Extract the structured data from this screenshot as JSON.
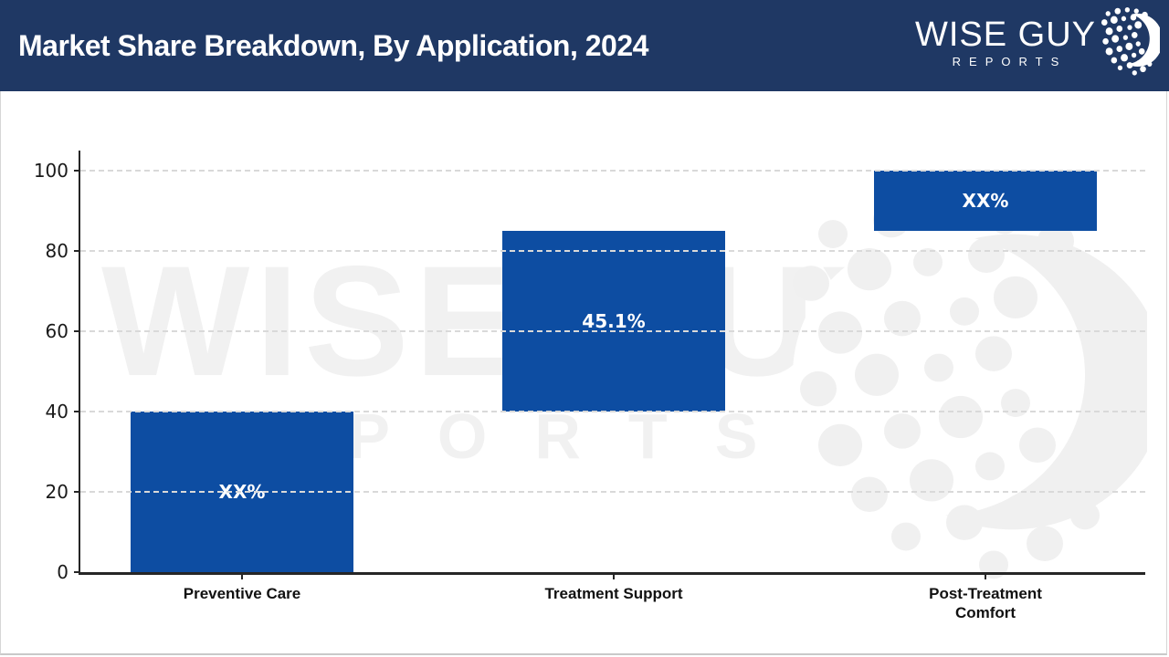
{
  "header": {
    "title": "Market Share Breakdown, By Application, 2024",
    "logo": {
      "line1": "WISE GUY",
      "line2": "REPORTS"
    }
  },
  "watermark": {
    "line1": "WISE GUY",
    "line2": "REPORTS"
  },
  "chart_data": {
    "type": "bar",
    "subtype": "waterfall",
    "title": "Market Share Breakdown, By Application, 2024",
    "categories": [
      "Preventive Care",
      "Treatment Support",
      "Post-Treatment\nComfort"
    ],
    "bars": [
      {
        "label": "XX%",
        "start": 0,
        "end": 40
      },
      {
        "label": "45.1%",
        "start": 40,
        "end": 85.1
      },
      {
        "label": "XX%",
        "start": 85.1,
        "end": 100
      }
    ],
    "ylim": [
      0,
      100
    ],
    "yticks": [
      0,
      20,
      40,
      60,
      80,
      100
    ],
    "grid": "horizontal dashed",
    "legend": "none",
    "bar_color": "#0d4da2",
    "label_color": "#ffffff"
  },
  "colors": {
    "header_bg": "#1f3864",
    "bar": "#0d4da2",
    "gridline": "#d9d9d9",
    "axis": "#262626",
    "watermark": "#f1f1f1"
  }
}
